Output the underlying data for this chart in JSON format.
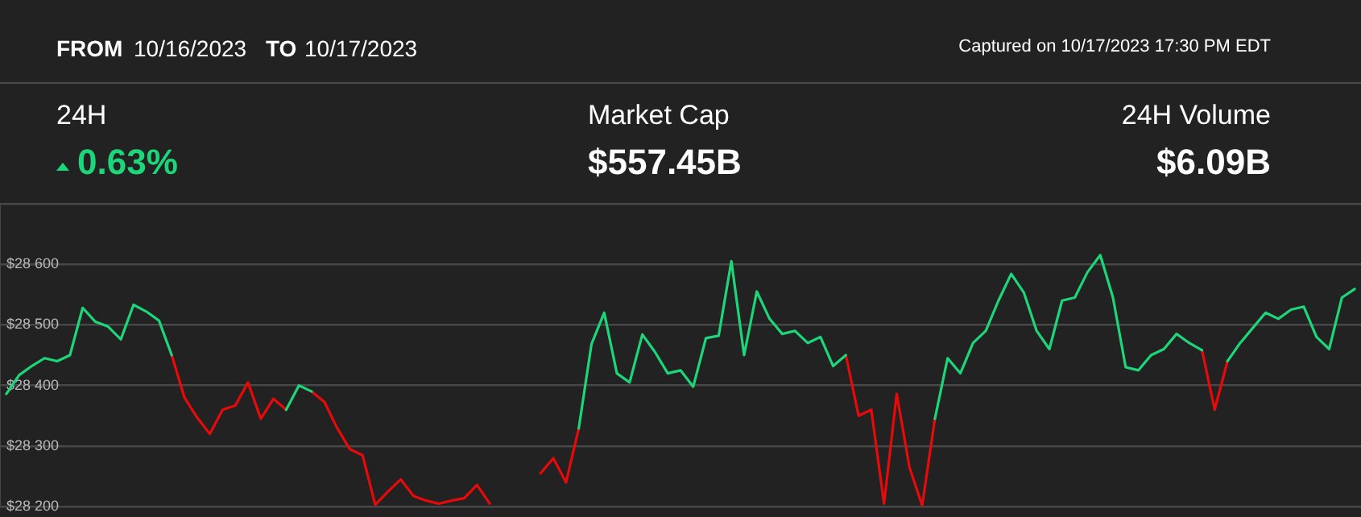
{
  "chart_data": {
    "type": "line",
    "annotations": [
      "FROM",
      "10/16/2023",
      "TO",
      "10/17/2023",
      "Captured on 10/17/2023 17:30 PM EDT",
      "24H",
      "0.63%",
      "Market Cap",
      "$557.45B",
      "24H Volume",
      "$6.09B"
    ],
    "categories": [
      null,
      null,
      null,
      null,
      null,
      null,
      null,
      null,
      null,
      null,
      null,
      null,
      null,
      null,
      null,
      null,
      null,
      null,
      null,
      null,
      null,
      null,
      null,
      null,
      null,
      null,
      null,
      null,
      null,
      null,
      null,
      null,
      null,
      null,
      null,
      null,
      null,
      null,
      null,
      null,
      null,
      null,
      null,
      null,
      null,
      null,
      null,
      null,
      null,
      null,
      null,
      null,
      null,
      null,
      null,
      null,
      null,
      null,
      null,
      null,
      null,
      null,
      null,
      null,
      null,
      null,
      null,
      null,
      null,
      null,
      null,
      null,
      null,
      null,
      null,
      null,
      null,
      null,
      null,
      null,
      null,
      null,
      null,
      null,
      null,
      null,
      null,
      null,
      null,
      null,
      null,
      null,
      null,
      null,
      null,
      null,
      null,
      null,
      null,
      null,
      null,
      null,
      null,
      null,
      null,
      null,
      null
    ],
    "series": [
      {
        "color": "#1ed67a",
        "values": [
          28386,
          28417,
          28432,
          28445,
          28440,
          28450,
          28528,
          28505,
          28497,
          28476,
          28533,
          28522,
          28507,
          28450,
          null,
          null,
          null,
          null,
          null,
          null,
          null,
          null,
          28360,
          28400,
          28390,
          null,
          null,
          null,
          null,
          null,
          null,
          null,
          null,
          null,
          null,
          null,
          null,
          null,
          null,
          null,
          null,
          null,
          null,
          null,
          null,
          28329,
          28468,
          28520,
          28420,
          28405,
          28484,
          28455,
          28420,
          28425,
          28398,
          28478,
          28482,
          28605,
          28450,
          28555,
          28510,
          28485,
          28490,
          28470,
          28480,
          28432,
          28450,
          null,
          null,
          null,
          null,
          null,
          null,
          28345,
          28445,
          28420,
          28470,
          28490,
          28540,
          28584,
          28553,
          28490,
          28460,
          28540,
          28545,
          28587,
          28615,
          28545,
          28430,
          28425,
          28450,
          28460,
          28485,
          28470,
          28458,
          null,
          28440,
          28470,
          28495,
          28520,
          28510,
          28525,
          28530,
          28480,
          28460,
          28545,
          28559
        ]
      },
      {
        "color": "#e80a0a",
        "values": [
          null,
          null,
          null,
          null,
          null,
          null,
          null,
          null,
          null,
          null,
          null,
          null,
          null,
          28450,
          28380,
          28347,
          28320,
          28360,
          28367,
          28405,
          28345,
          28378,
          28360,
          null,
          28390,
          28373,
          28330,
          28295,
          28285,
          28203,
          28225,
          28245,
          28218,
          28210,
          28205,
          28210,
          28214,
          28236,
          28205,
          null,
          null,
          null,
          28255,
          28280,
          28240,
          28329,
          null,
          null,
          null,
          null,
          null,
          null,
          null,
          null,
          null,
          null,
          null,
          null,
          null,
          null,
          null,
          null,
          null,
          null,
          null,
          null,
          28450,
          28350,
          28360,
          28205,
          28386,
          28265,
          28202,
          28345,
          null,
          null,
          null,
          null,
          null,
          null,
          null,
          null,
          null,
          null,
          null,
          null,
          null,
          null,
          null,
          null,
          null,
          null,
          null,
          null,
          28458,
          28360,
          28440,
          null,
          null,
          null,
          null,
          null,
          null,
          null,
          null,
          null,
          null
        ]
      }
    ],
    "ylim": [
      28200,
      28700
    ],
    "yticks": [
      {
        "value": 28200,
        "label": "$28 200"
      },
      {
        "value": 28300,
        "label": "$28 300"
      },
      {
        "value": 28400,
        "label": "$28 400"
      },
      {
        "value": 28500,
        "label": "$28 500"
      },
      {
        "value": 28600,
        "label": "$28 600"
      }
    ],
    "grid": "y",
    "legend": false,
    "tick_labels": "y",
    "line_style": "solid",
    "marker": "none"
  }
}
